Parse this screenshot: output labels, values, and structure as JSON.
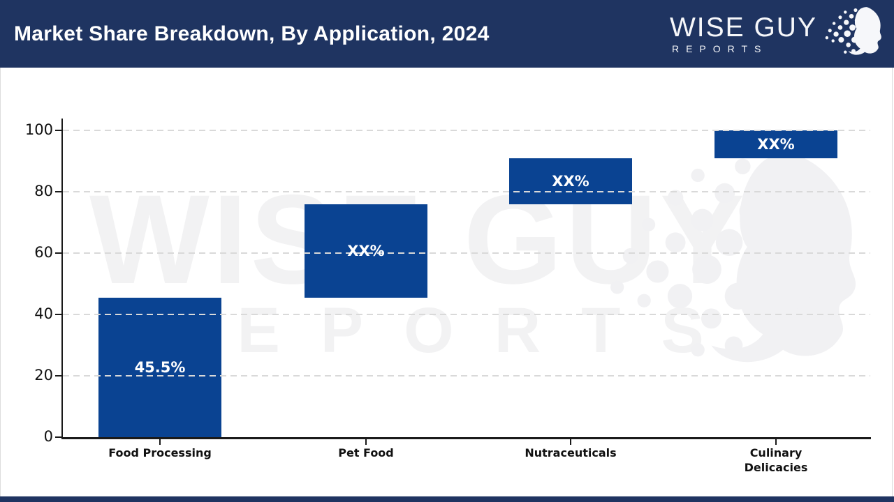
{
  "header": {
    "title": "Market Share Breakdown, By Application, 2024",
    "logo": {
      "line1": "WISE GUY",
      "line2": "REPORTS"
    }
  },
  "watermark": {
    "line1": "WISE GUY",
    "line2": "REPORTS"
  },
  "colors": {
    "header_bg": "#1f3461",
    "footer_bg": "#1f3461",
    "bar": "#0a4392",
    "bar_label": "#ffffff",
    "grid": "#d9d9d9",
    "axis": "#1a1a1a",
    "watermark": "#f2f2f3"
  },
  "chart_data": {
    "type": "bar",
    "subtype": "waterfall",
    "title": "Market Share Breakdown, By Application, 2024",
    "xlabel": "",
    "ylabel": "",
    "ylim": [
      0,
      100
    ],
    "yticks": [
      0,
      20,
      40,
      60,
      80,
      100
    ],
    "grid": "horizontal-dashed",
    "legend": "none",
    "bar_color": "#0a4392",
    "categories": [
      "Food Processing",
      "Pet Food",
      "Nutraceuticals",
      "Culinary Delicacies"
    ],
    "bars": [
      {
        "category": "Food Processing",
        "start": 0,
        "end": 45.5,
        "label": "45.5%"
      },
      {
        "category": "Pet Food",
        "start": 45.5,
        "end": 76,
        "label": "XX%"
      },
      {
        "category": "Nutraceuticals",
        "start": 76,
        "end": 91,
        "label": "XX%"
      },
      {
        "category": "Culinary Delicacies",
        "start": 91,
        "end": 100,
        "label": "XX%"
      }
    ]
  }
}
